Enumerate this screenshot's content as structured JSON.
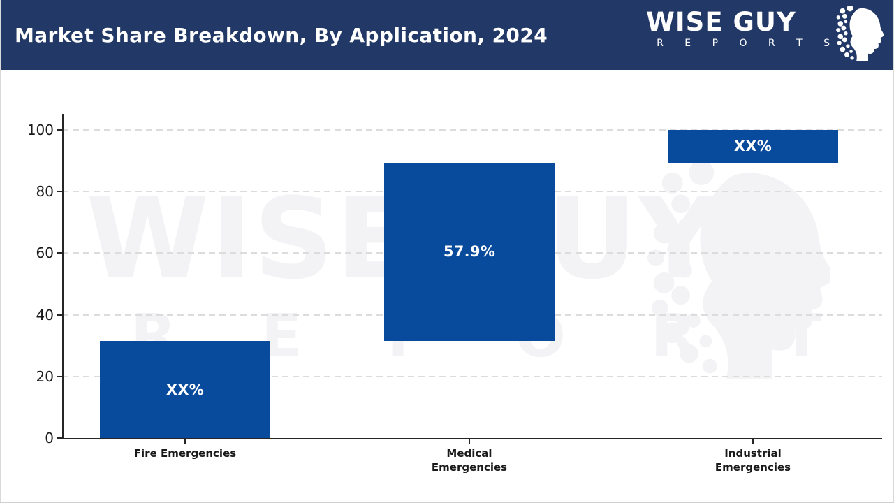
{
  "header": {
    "title": "Market Share Breakdown, By Application, 2024",
    "logo": {
      "name": "WISE GUY",
      "tagline": "R E P O R T S"
    }
  },
  "watermark": {
    "line1": "WISE GUY",
    "line2": "R E P O R T S"
  },
  "colors": {
    "header_bg": "#223866",
    "bar": "#084a9c",
    "bar_label": "#ffffff",
    "axis": "#262626",
    "grid": "#dcdcdc",
    "tick_text": "#1a1a1a",
    "watermark": "#f3f3f6"
  },
  "chart_data": {
    "type": "bar",
    "subtype": "waterfall",
    "title": "Market Share Breakdown, By Application, 2024",
    "categories": [
      "Fire Emergencies",
      "Medical Emergencies",
      "Industrial Emergencies"
    ],
    "category_label_lines": [
      [
        "Fire Emergencies"
      ],
      [
        "Medical",
        "Emergencies"
      ],
      [
        "Industrial",
        "Emergencies"
      ]
    ],
    "segments": [
      {
        "category": "Fire Emergencies",
        "start": 0,
        "end": 31.5,
        "label": "XX%"
      },
      {
        "category": "Medical Emergencies",
        "start": 31.5,
        "end": 89.4,
        "label": "57.9%"
      },
      {
        "category": "Industrial Emergencies",
        "start": 89.4,
        "end": 100,
        "label": "XX%"
      }
    ],
    "ylim": [
      0,
      100
    ],
    "yticks": [
      0,
      20,
      40,
      60,
      80,
      100
    ],
    "xlabel": "",
    "ylabel": "",
    "legend": "none",
    "grid": "horizontal-dashed",
    "bar_color": "#084a9c",
    "value_label_color": "#ffffff"
  }
}
